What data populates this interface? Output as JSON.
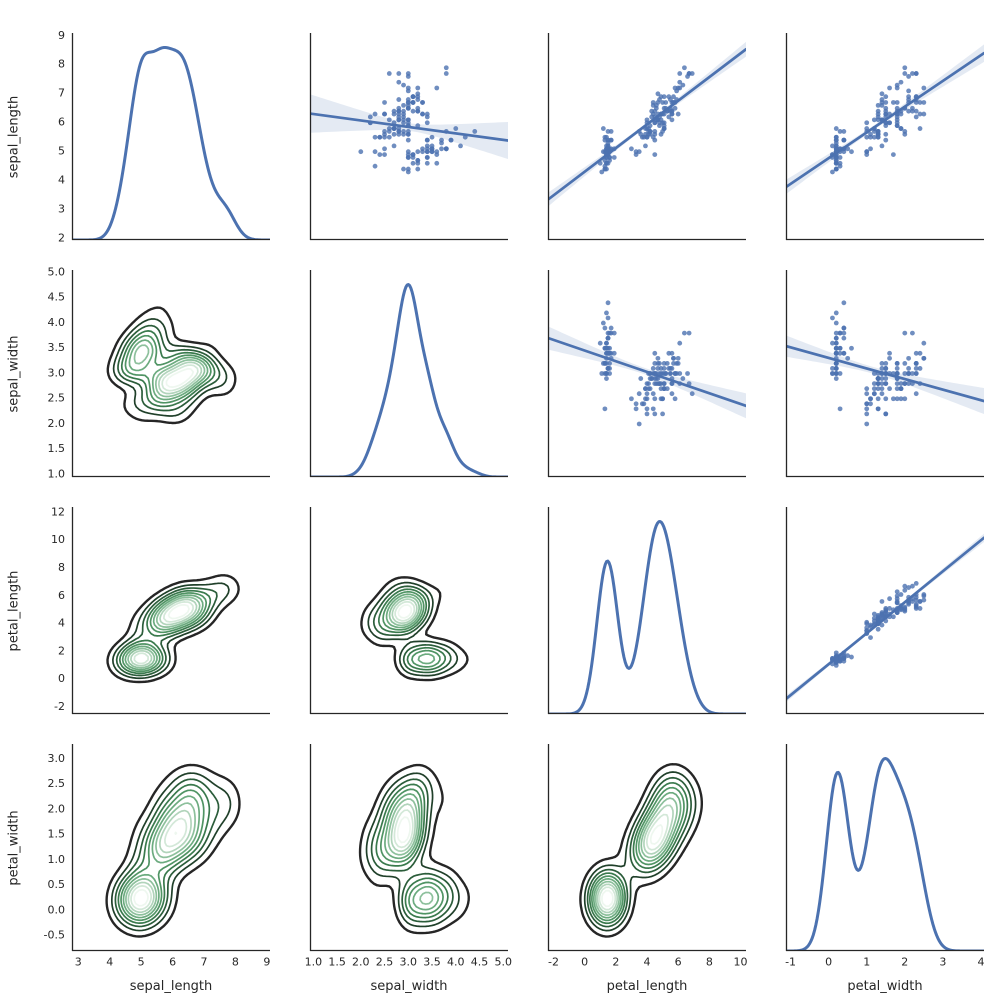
{
  "figure": {
    "background": "#ffffff",
    "kind": "pairplot-matrix",
    "rows": 4,
    "cols": 4
  },
  "chart_data": {
    "type": "scatter",
    "chart_kind": "pairplot (seaborn PairGrid, iris dataset)",
    "title": "",
    "legend": "none",
    "grid": "off",
    "variables": [
      "sepal_length",
      "sepal_width",
      "petal_length",
      "petal_width"
    ],
    "panel_matrix": [
      [
        "kde-diagonal",
        "scatter-regression",
        "scatter-regression",
        "scatter-regression"
      ],
      [
        "kde-contour",
        "kde-diagonal",
        "scatter-regression",
        "scatter-regression"
      ],
      [
        "kde-contour",
        "kde-contour",
        "kde-diagonal",
        "scatter-regression"
      ],
      [
        "kde-contour",
        "kde-contour",
        "kde-contour",
        "kde-diagonal"
      ]
    ],
    "axes": {
      "sepal_length": {
        "xlim": [
          2.8,
          9.1
        ],
        "ylim": [
          1.95,
          9.1
        ],
        "x_ticks": [
          3,
          4,
          5,
          6,
          7,
          8,
          9
        ],
        "x_tick_decimals": 0,
        "y_ticks": [
          2,
          3,
          4,
          5,
          6,
          7,
          8,
          9
        ],
        "y_tick_decimals": 0
      },
      "sepal_width": {
        "xlim": [
          0.93,
          5.1
        ],
        "ylim": [
          0.95,
          5.05
        ],
        "x_ticks": [
          1.0,
          1.5,
          2.0,
          2.5,
          3.0,
          3.5,
          4.0,
          4.5,
          5.0
        ],
        "x_tick_decimals": 1,
        "y_ticks": [
          1.0,
          1.5,
          2.0,
          2.5,
          3.0,
          3.5,
          4.0,
          4.5,
          5.0
        ],
        "y_tick_decimals": 1
      },
      "petal_length": {
        "xlim": [
          -2.35,
          10.35
        ],
        "ylim": [
          -2.5,
          12.4
        ],
        "x_ticks": [
          -2,
          0,
          2,
          4,
          6,
          8,
          10
        ],
        "x_tick_decimals": 0,
        "y_ticks": [
          -2,
          0,
          2,
          4,
          6,
          8,
          10,
          12
        ],
        "y_tick_decimals": 0
      },
      "petal_width": {
        "xlim": [
          -1.12,
          4.08
        ],
        "ylim": [
          -0.8,
          3.3
        ],
        "x_ticks": [
          -1,
          0,
          1,
          2,
          3,
          4
        ],
        "x_tick_decimals": 0,
        "y_ticks": [
          -0.5,
          0.0,
          0.5,
          1.0,
          1.5,
          2.0,
          2.5,
          3.0
        ],
        "y_tick_decimals": 1
      }
    },
    "colors": {
      "scatter_point": "#4C72B0",
      "regression_line": "#4C72B0",
      "ci_band": "#4C72B0",
      "ci_band_alpha": 0.15,
      "kde_line": "#4C72B0",
      "spine": "#262626",
      "tick_text": "#262626",
      "contour_palette": [
        "#262626",
        "#20402a",
        "#2b5d3a",
        "#3a7a4d",
        "#509464",
        "#6cab7f",
        "#8dc09c",
        "#b1d4bb",
        "#d3e8d8",
        "#eef7ef"
      ]
    },
    "data": {
      "sepal_length": [
        5.1,
        4.9,
        4.7,
        4.6,
        5.0,
        5.4,
        4.6,
        5.0,
        4.4,
        4.9,
        5.4,
        4.8,
        4.8,
        4.3,
        5.8,
        5.7,
        5.4,
        5.1,
        5.7,
        5.1,
        5.4,
        5.1,
        4.6,
        5.1,
        4.8,
        5.0,
        5.0,
        5.2,
        5.2,
        4.7,
        4.8,
        5.4,
        5.2,
        5.5,
        4.9,
        5.0,
        5.5,
        4.9,
        4.4,
        5.1,
        5.0,
        4.5,
        4.4,
        5.0,
        5.1,
        4.8,
        5.1,
        4.6,
        5.3,
        5.0,
        7.0,
        6.4,
        6.9,
        5.5,
        6.5,
        5.7,
        6.3,
        4.9,
        6.6,
        5.2,
        5.0,
        5.9,
        6.0,
        6.1,
        5.6,
        6.7,
        5.6,
        5.8,
        6.2,
        5.6,
        5.9,
        6.1,
        6.3,
        6.1,
        6.4,
        6.6,
        6.8,
        6.7,
        6.0,
        5.7,
        5.5,
        5.5,
        5.8,
        6.0,
        5.4,
        6.0,
        6.7,
        6.3,
        5.6,
        5.5,
        5.5,
        6.1,
        5.8,
        5.0,
        5.6,
        5.7,
        5.7,
        6.2,
        5.1,
        5.7,
        6.3,
        5.8,
        7.1,
        6.3,
        6.5,
        7.6,
        4.9,
        7.3,
        6.7,
        7.2,
        6.5,
        6.4,
        6.8,
        5.7,
        5.8,
        6.4,
        6.5,
        7.7,
        7.7,
        6.0,
        6.9,
        5.6,
        7.7,
        6.3,
        6.7,
        7.2,
        6.2,
        6.1,
        6.4,
        7.2,
        7.4,
        7.9,
        6.4,
        6.3,
        6.1,
        7.7,
        6.3,
        6.4,
        6.0,
        6.9,
        6.7,
        6.9,
        5.8,
        6.8,
        6.7,
        6.7,
        6.3,
        6.5,
        6.2,
        5.9
      ],
      "sepal_width": [
        3.5,
        3.0,
        3.2,
        3.1,
        3.6,
        3.9,
        3.4,
        3.4,
        2.9,
        3.1,
        3.7,
        3.4,
        3.0,
        3.0,
        4.0,
        4.4,
        3.9,
        3.5,
        3.8,
        3.8,
        3.4,
        3.7,
        3.6,
        3.3,
        3.4,
        3.0,
        3.4,
        3.5,
        3.4,
        3.2,
        3.1,
        3.4,
        4.1,
        4.2,
        3.1,
        3.2,
        3.5,
        3.6,
        3.0,
        3.4,
        3.5,
        2.3,
        3.2,
        3.5,
        3.8,
        3.0,
        3.8,
        3.2,
        3.7,
        3.3,
        3.2,
        3.2,
        3.1,
        2.3,
        2.8,
        2.8,
        3.3,
        2.4,
        2.9,
        2.7,
        2.0,
        3.0,
        2.2,
        2.9,
        2.9,
        3.1,
        3.0,
        2.7,
        2.2,
        2.5,
        3.2,
        2.8,
        2.5,
        2.8,
        2.9,
        3.0,
        2.8,
        3.0,
        2.9,
        2.6,
        2.4,
        2.4,
        2.7,
        2.7,
        3.0,
        3.4,
        3.1,
        2.3,
        3.0,
        2.5,
        2.6,
        3.0,
        2.6,
        2.3,
        2.7,
        3.0,
        2.9,
        2.9,
        2.5,
        2.8,
        3.3,
        2.7,
        3.0,
        2.9,
        3.0,
        3.0,
        2.5,
        2.9,
        2.5,
        3.6,
        3.2,
        2.7,
        3.0,
        2.5,
        2.8,
        3.2,
        3.0,
        3.8,
        2.6,
        2.2,
        3.2,
        2.8,
        2.8,
        2.7,
        3.3,
        3.2,
        2.8,
        3.0,
        2.8,
        3.0,
        2.8,
        3.8,
        2.8,
        2.8,
        2.6,
        3.0,
        3.4,
        3.1,
        3.0,
        3.1,
        3.1,
        3.1,
        2.7,
        3.2,
        3.3,
        3.0,
        2.5,
        3.0,
        3.4,
        3.0
      ],
      "petal_length": [
        1.4,
        1.4,
        1.3,
        1.5,
        1.4,
        1.7,
        1.4,
        1.5,
        1.4,
        1.5,
        1.5,
        1.6,
        1.4,
        1.1,
        1.2,
        1.5,
        1.3,
        1.4,
        1.7,
        1.5,
        1.7,
        1.5,
        1.0,
        1.7,
        1.9,
        1.6,
        1.6,
        1.5,
        1.4,
        1.6,
        1.6,
        1.5,
        1.5,
        1.4,
        1.5,
        1.2,
        1.3,
        1.4,
        1.3,
        1.5,
        1.3,
        1.3,
        1.3,
        1.6,
        1.9,
        1.4,
        1.6,
        1.4,
        1.5,
        1.4,
        4.7,
        4.5,
        4.9,
        4.0,
        4.6,
        4.5,
        4.7,
        3.3,
        4.6,
        3.9,
        3.5,
        4.2,
        4.0,
        4.7,
        3.6,
        4.4,
        4.5,
        4.1,
        4.5,
        3.9,
        4.8,
        4.0,
        4.9,
        4.7,
        4.3,
        4.4,
        4.8,
        5.0,
        4.5,
        3.5,
        3.8,
        3.7,
        3.9,
        5.1,
        4.5,
        4.5,
        4.7,
        4.4,
        4.1,
        4.0,
        4.4,
        4.6,
        4.0,
        3.3,
        4.2,
        4.2,
        4.2,
        4.3,
        3.0,
        4.1,
        6.0,
        5.1,
        5.9,
        5.6,
        5.8,
        6.6,
        4.5,
        6.3,
        5.8,
        6.1,
        5.1,
        5.3,
        5.5,
        5.0,
        5.1,
        5.3,
        5.5,
        6.7,
        6.9,
        5.0,
        5.7,
        4.9,
        6.7,
        4.9,
        5.7,
        6.0,
        4.8,
        4.9,
        5.6,
        5.8,
        6.1,
        6.4,
        5.6,
        5.1,
        5.6,
        6.1,
        5.6,
        5.5,
        4.8,
        5.4,
        5.6,
        5.1,
        5.1,
        5.9,
        5.7,
        5.2,
        5.0,
        5.2,
        5.4,
        5.1
      ],
      "petal_width": [
        0.2,
        0.2,
        0.2,
        0.2,
        0.2,
        0.4,
        0.3,
        0.2,
        0.2,
        0.1,
        0.2,
        0.2,
        0.1,
        0.1,
        0.2,
        0.4,
        0.4,
        0.3,
        0.3,
        0.3,
        0.2,
        0.4,
        0.2,
        0.5,
        0.2,
        0.2,
        0.4,
        0.2,
        0.2,
        0.2,
        0.2,
        0.4,
        0.1,
        0.2,
        0.2,
        0.2,
        0.2,
        0.1,
        0.2,
        0.2,
        0.3,
        0.3,
        0.2,
        0.6,
        0.4,
        0.3,
        0.2,
        0.2,
        0.2,
        0.2,
        1.4,
        1.5,
        1.5,
        1.3,
        1.5,
        1.3,
        1.6,
        1.0,
        1.3,
        1.4,
        1.0,
        1.5,
        1.0,
        1.4,
        1.3,
        1.4,
        1.5,
        1.0,
        1.5,
        1.1,
        1.8,
        1.3,
        1.5,
        1.2,
        1.3,
        1.4,
        1.4,
        1.7,
        1.5,
        1.0,
        1.1,
        1.0,
        1.2,
        1.6,
        1.5,
        1.6,
        1.5,
        1.3,
        1.3,
        1.3,
        1.2,
        1.4,
        1.2,
        1.0,
        1.3,
        1.2,
        1.3,
        1.3,
        1.1,
        1.3,
        2.5,
        1.9,
        2.1,
        1.8,
        2.2,
        2.1,
        1.7,
        1.8,
        1.8,
        2.5,
        2.0,
        1.9,
        2.1,
        2.0,
        2.4,
        2.3,
        1.8,
        2.2,
        2.3,
        1.5,
        2.3,
        2.0,
        2.0,
        1.8,
        2.1,
        1.8,
        1.8,
        1.8,
        2.1,
        1.6,
        1.9,
        2.0,
        2.2,
        1.5,
        1.4,
        2.3,
        2.4,
        1.8,
        1.8,
        2.1,
        2.4,
        2.3,
        1.9,
        2.3,
        2.5,
        2.3,
        1.9,
        2.0,
        2.3,
        1.8
      ]
    }
  },
  "axis_labels": {
    "x": [
      "sepal_length",
      "sepal_width",
      "petal_length",
      "petal_width"
    ],
    "y": [
      "sepal_length",
      "sepal_width",
      "petal_length",
      "petal_width"
    ]
  }
}
